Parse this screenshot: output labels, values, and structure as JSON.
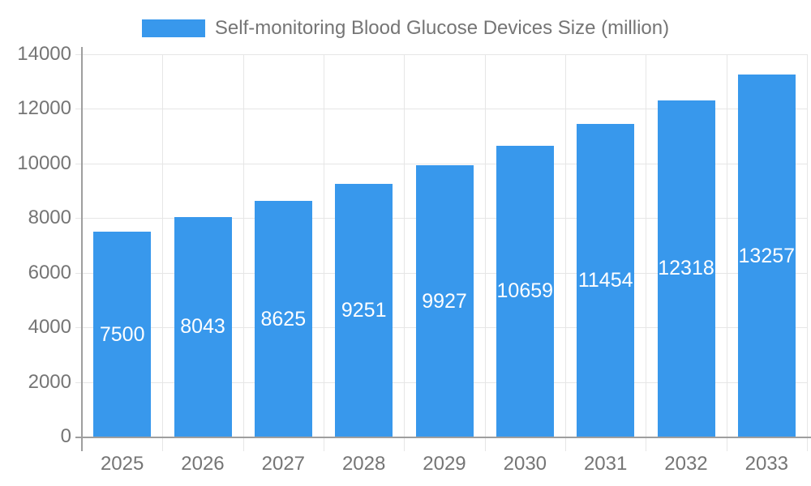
{
  "chart_data": {
    "type": "bar",
    "title": "Self-monitoring Blood Glucose Devices Size (million)",
    "categories": [
      "2025",
      "2026",
      "2027",
      "2028",
      "2029",
      "2030",
      "2031",
      "2032",
      "2033"
    ],
    "values": [
      7500,
      8043,
      8625,
      9251,
      9927,
      10659,
      11454,
      12318,
      13257
    ],
    "xlabel": "",
    "ylabel": "",
    "ylim": [
      0,
      14000
    ],
    "yticks": [
      0,
      2000,
      4000,
      6000,
      8000,
      10000,
      12000,
      14000
    ],
    "grid": true,
    "legend_position": "top",
    "colors": {
      "bar": "#3898ec",
      "bar_value_label": "#ffffff",
      "axis_text": "#757575",
      "grid_line": "#e6e6e6",
      "axis_line": "#9e9e9e"
    }
  }
}
